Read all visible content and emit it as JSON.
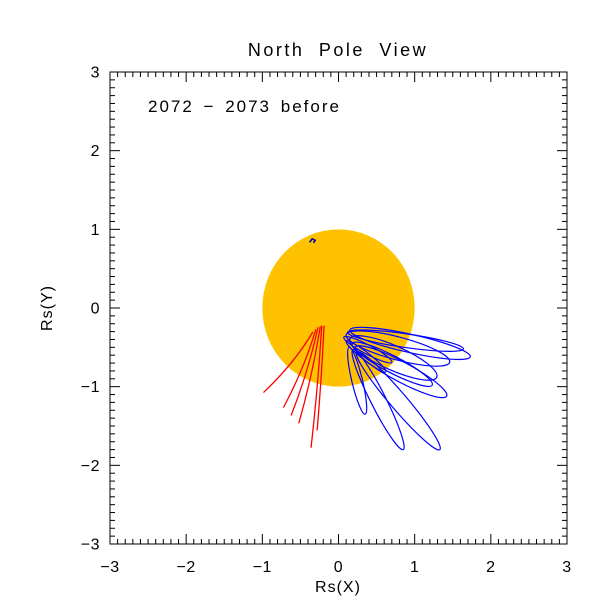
{
  "chart_data": {
    "type": "line",
    "title": "North Pole View",
    "annotation": "2072 − 2073 before",
    "xlabel": "Rs(X)",
    "ylabel": "Rs(Y)",
    "xlim": [
      -3,
      3
    ],
    "ylim": [
      -3,
      3
    ],
    "x_ticks": [
      -3,
      -2,
      -1,
      0,
      1,
      2,
      3
    ],
    "x_tick_labels": [
      "−3",
      "−2",
      "−1",
      "0",
      "1",
      "2",
      "3"
    ],
    "y_ticks": [
      -3,
      -2,
      -1,
      0,
      1,
      2,
      3
    ],
    "y_tick_labels": [
      "−3",
      "−2",
      "−1",
      "0",
      "1",
      "2",
      "3"
    ],
    "minor_tick_step": 0.1,
    "grid": false,
    "legend": "none",
    "sun": {
      "center": [
        0,
        0
      ],
      "radius": 1
    },
    "blue_loops": [
      {
        "root": [
          0.15,
          -0.28
        ],
        "tip": [
          1.73,
          -0.62
        ],
        "hw": 0.12
      },
      {
        "root": [
          0.12,
          -0.31
        ],
        "tip": [
          1.64,
          -0.52
        ],
        "hw": 0.09
      },
      {
        "root": [
          0.1,
          -0.34
        ],
        "tip": [
          1.46,
          -0.69
        ],
        "hw": 0.15
      },
      {
        "root": [
          0.15,
          -0.39
        ],
        "tip": [
          1.29,
          -0.88
        ],
        "hw": 0.16
      },
      {
        "root": [
          0.18,
          -0.45
        ],
        "tip": [
          1.23,
          -0.98
        ],
        "hw": 0.11
      },
      {
        "root": [
          0.22,
          -0.5
        ],
        "tip": [
          1.42,
          -1.12
        ],
        "hw": 0.13
      },
      {
        "root": [
          0.24,
          -0.56
        ],
        "tip": [
          1.33,
          -1.8
        ],
        "hw": 0.11
      },
      {
        "root": [
          0.19,
          -0.53
        ],
        "tip": [
          0.85,
          -1.8
        ],
        "hw": 0.1
      },
      {
        "root": [
          0.14,
          -0.5
        ],
        "tip": [
          0.35,
          -1.35
        ],
        "hw": 0.07
      },
      {
        "root": [
          0.07,
          -0.37
        ],
        "tip": [
          0.7,
          -0.69
        ],
        "hw": 0.06
      },
      {
        "root": [
          0.1,
          -0.42
        ],
        "tip": [
          0.62,
          -0.81
        ],
        "hw": 0.05
      }
    ],
    "red_lines": [
      {
        "from": [
          -0.34,
          -0.31
        ],
        "to": [
          -0.98,
          -1.07
        ]
      },
      {
        "from": [
          -0.3,
          -0.28
        ],
        "to": [
          -0.72,
          -1.26
        ]
      },
      {
        "from": [
          -0.27,
          -0.25
        ],
        "to": [
          -0.62,
          -1.36
        ]
      },
      {
        "from": [
          -0.24,
          -0.24
        ],
        "to": [
          -0.52,
          -1.46
        ]
      },
      {
        "from": [
          -0.22,
          -0.23
        ],
        "to": [
          -0.36,
          -1.77
        ]
      },
      {
        "from": [
          -0.19,
          -0.23
        ],
        "to": [
          -0.28,
          -1.55
        ]
      }
    ],
    "spot": {
      "pos": [
        -0.34,
        0.86
      ]
    },
    "colors": {
      "sun": "#ffc200",
      "closed_field": "#0000ff",
      "open_field": "#ff0000",
      "spot": "#000099",
      "axis": "#000000",
      "background": "#ffffff"
    }
  }
}
